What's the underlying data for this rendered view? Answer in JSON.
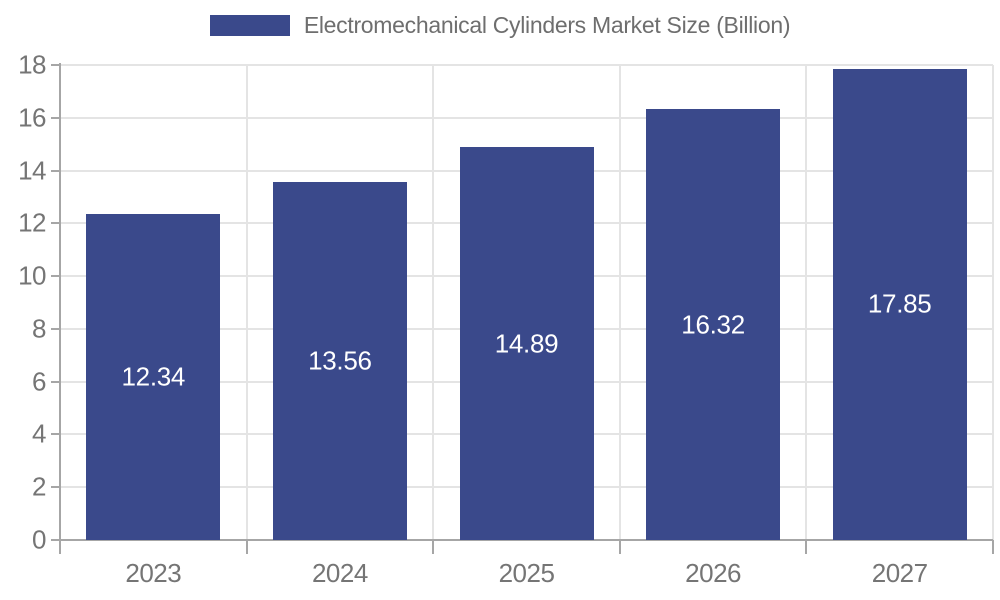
{
  "chart_data": {
    "type": "bar",
    "title": "Electromechanical Cylinders Market Size (Billion)",
    "categories": [
      "2023",
      "2024",
      "2025",
      "2026",
      "2027"
    ],
    "values": [
      12.34,
      13.56,
      14.89,
      16.32,
      17.85
    ],
    "value_labels": [
      "12.34",
      "13.56",
      "14.89",
      "16.32",
      "17.85"
    ],
    "xlabel": "",
    "ylabel": "",
    "ylim": [
      0,
      18
    ],
    "yticks": [
      0,
      2,
      4,
      6,
      8,
      10,
      12,
      14,
      16,
      18
    ],
    "grid": true,
    "legend_position": "top-center",
    "colors": {
      "bar": "#3a498b",
      "bar_value_label": "#ffffff",
      "grid_line": "#e4e4e4",
      "axis_line": "#a6a6a6",
      "tick_label": "#757575",
      "legend_text": "#6e6e6e",
      "background": "#ffffff"
    }
  }
}
